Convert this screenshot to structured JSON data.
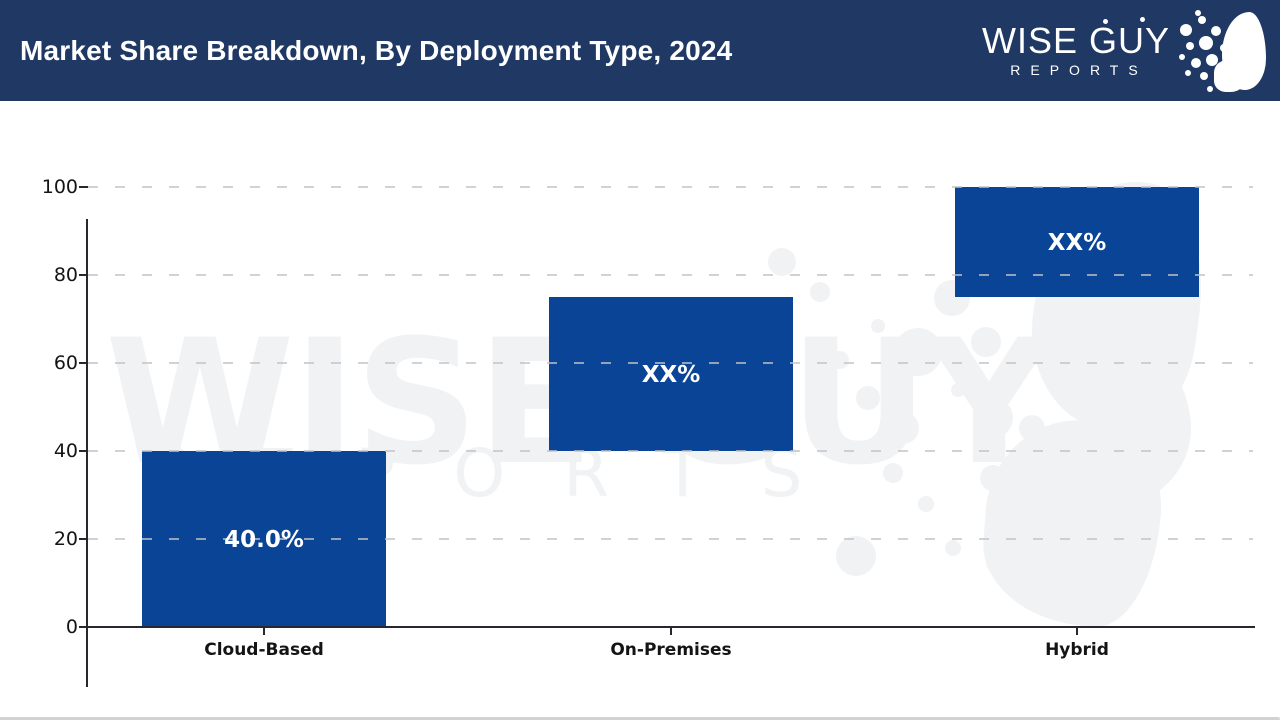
{
  "header": {
    "title": "Market Share Breakdown, By Deployment Type, 2024",
    "logo": {
      "name": "WISE GUY",
      "sub": "REPORTS"
    }
  },
  "watermark": {
    "line1": "WISE GUY",
    "line2": "REPORTS"
  },
  "chart_data": {
    "type": "bar",
    "subtype": "floating-range (waterfall-style market share breakdown)",
    "title": "Market Share Breakdown, By Deployment Type, 2024",
    "categories": [
      "Cloud-Based",
      "On-Premises",
      "Hybrid"
    ],
    "segments": [
      {
        "category": "Cloud-Based",
        "start": 0,
        "end": 40,
        "label": "40.0%"
      },
      {
        "category": "On-Premises",
        "start": 40,
        "end": 75,
        "label": "XX%"
      },
      {
        "category": "Hybrid",
        "start": 75,
        "end": 100,
        "label": "XX%"
      }
    ],
    "xlabel": "",
    "ylabel": "",
    "ylim": [
      0,
      100
    ],
    "yticks": [
      0,
      20,
      40,
      60,
      80,
      100
    ],
    "grid": "horizontal dashed, drawn over bars",
    "legend": "none",
    "bar_color": "#0a4496",
    "axis_color": "#27272d",
    "header_color": "#203864"
  }
}
